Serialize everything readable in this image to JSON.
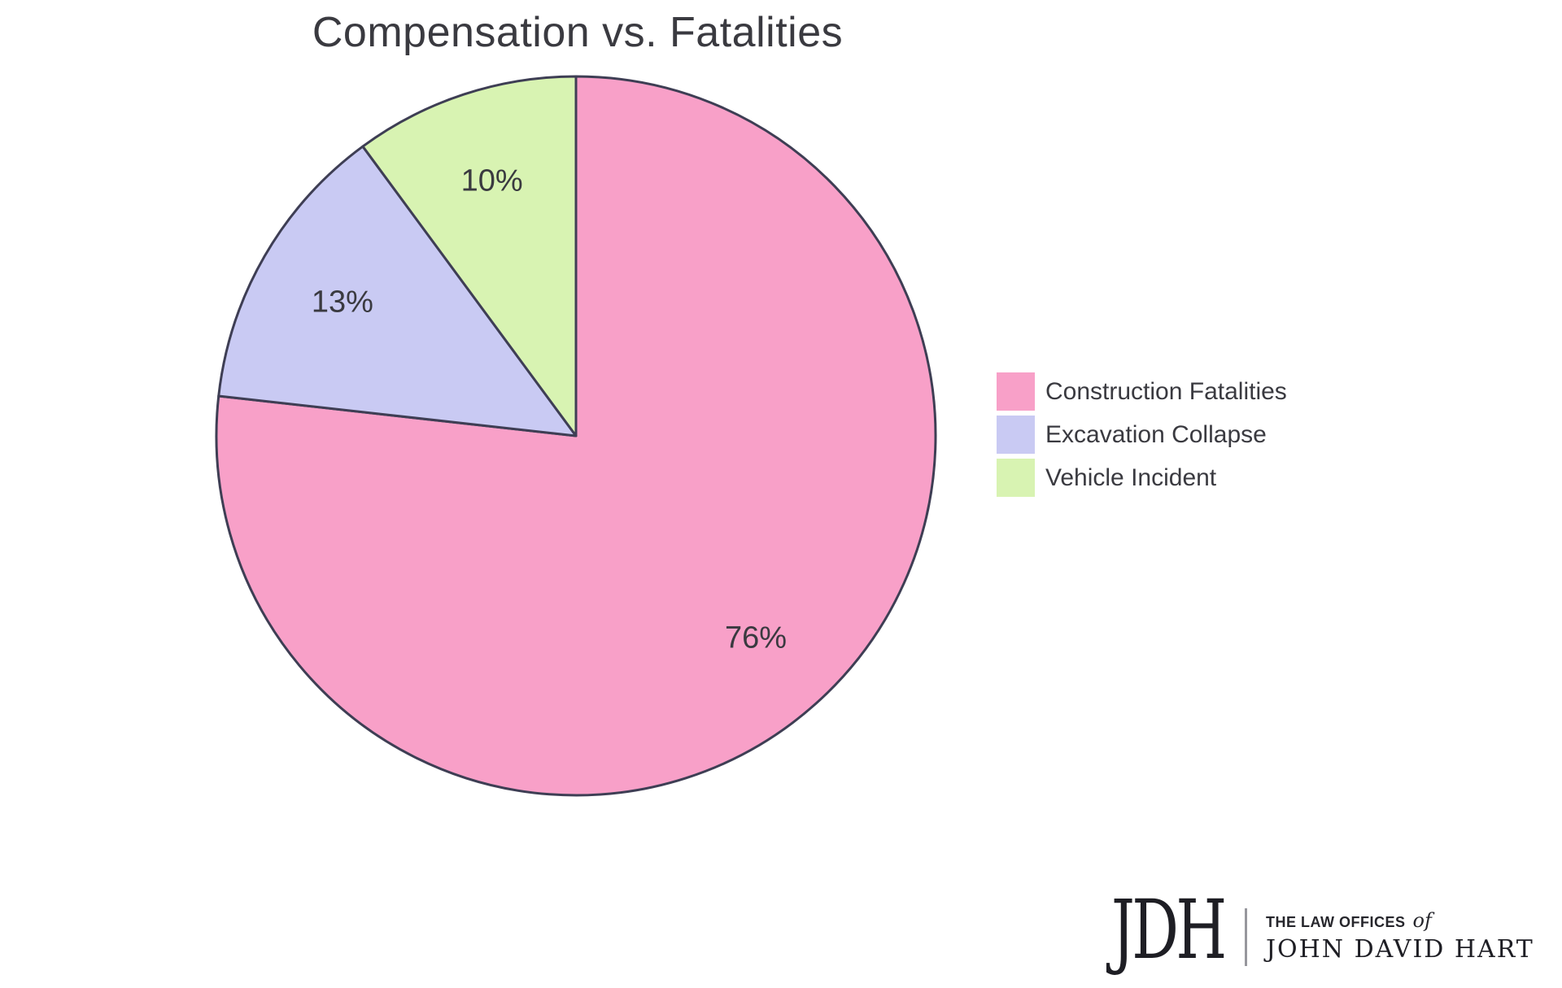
{
  "title": "Compensation vs. Fatalities",
  "chart_data": {
    "type": "pie",
    "title": "Compensation vs. Fatalities",
    "categories": [
      "Construction Fatalities",
      "Excavation Collapse",
      "Vehicle Incident"
    ],
    "values": [
      76,
      13,
      10
    ],
    "slice_labels": [
      "76%",
      "13%",
      "10%"
    ],
    "colors": [
      "#F8A0C8",
      "#C9CAF3",
      "#D8F3B2"
    ],
    "stroke_color": "#3E3E54",
    "label_color": "#3A3A40",
    "start_angle": "top (12 o'clock)",
    "direction": "clockwise",
    "legend_position": "right",
    "grid": false
  },
  "legend": {
    "items": [
      "Construction Fatalities",
      "Excavation Collapse",
      "Vehicle Incident"
    ]
  },
  "logo": {
    "monogram": "JDH",
    "tagline_prefix": "THE LAW OFFICES",
    "tagline_of": "of",
    "firm_name": "JOHN DAVID HART"
  }
}
